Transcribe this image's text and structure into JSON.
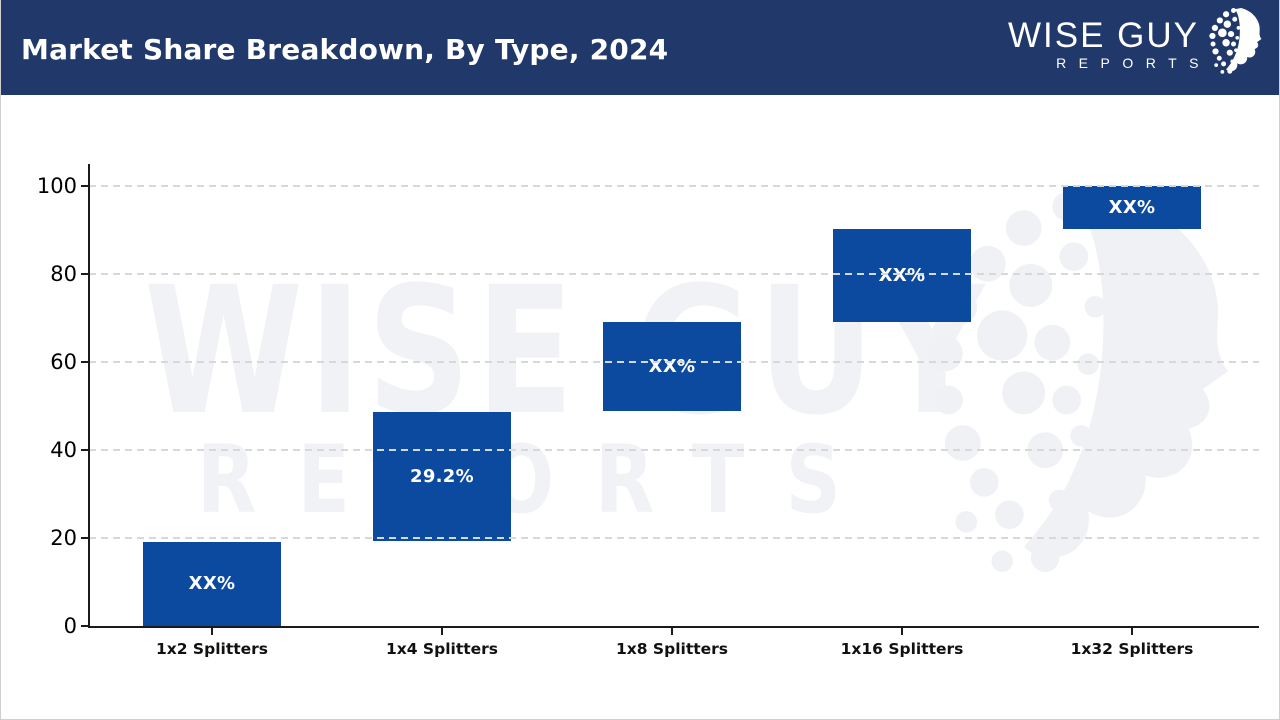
{
  "header": {
    "title": "Market Share Breakdown, By Type, 2024",
    "background_color": "#21386B",
    "logo": {
      "primary": "WISE GUY",
      "secondary": "REPORTS"
    }
  },
  "watermark": {
    "primary": "WISE GUY",
    "secondary": "REPORTS"
  },
  "chart_data": {
    "type": "bar",
    "subtype": "waterfall-floating-bars",
    "title": "Market Share Breakdown, By Type, 2024",
    "categories": [
      "1x2 Splitters",
      "1x4 Splitters",
      "1x8 Splitters",
      "1x16 Splitters",
      "1x32 Splitters"
    ],
    "bars": [
      {
        "category": "1x2 Splitters",
        "start": 0,
        "end": 19.2,
        "label": "XX%"
      },
      {
        "category": "1x4 Splitters",
        "start": 19.4,
        "end": 48.6,
        "value": 29.2,
        "label": "29.2%"
      },
      {
        "category": "1x8 Splitters",
        "start": 48.9,
        "end": 69.1,
        "label": "XX%"
      },
      {
        "category": "1x16 Splitters",
        "start": 69.1,
        "end": 90.2,
        "label": "XX%"
      },
      {
        "category": "1x32 Splitters",
        "start": 90.2,
        "end": 100,
        "label": "XX%"
      }
    ],
    "xlabel": "",
    "ylabel": "",
    "yticks": [
      0,
      20,
      40,
      60,
      80,
      100
    ],
    "ylim": [
      0,
      105
    ],
    "grid": true,
    "gridline_style": "dashed",
    "legend_position": "none",
    "bar_color": "#0B4A9F",
    "bar_label_color": "#FFFFFF",
    "axis_color": "#1A1A1A",
    "gridline_color": "#D8D8D8"
  }
}
